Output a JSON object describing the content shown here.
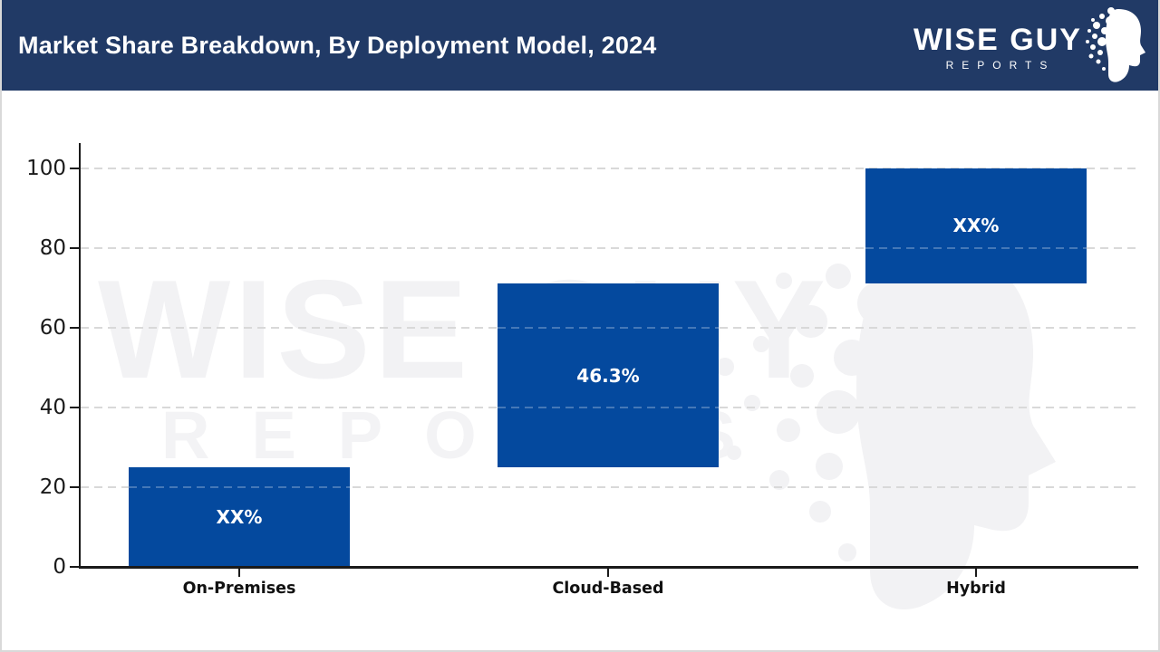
{
  "header": {
    "title": "Market Share Breakdown, By Deployment Model, 2024",
    "brand": {
      "line1": "WISE GUY",
      "line2": "REPORTS"
    }
  },
  "watermark": {
    "line1": "WISE GUY",
    "line2": "REPORTS"
  },
  "chart_data": {
    "type": "bar",
    "subtype": "floating_stacked_waterfall",
    "title": "Market Share Breakdown, By Deployment Model, 2024",
    "categories": [
      "On-Premises",
      "Cloud-Based",
      "Hybrid"
    ],
    "bars": [
      {
        "category": "On-Premises",
        "from": 0,
        "to": 24.9,
        "label": "XX%"
      },
      {
        "category": "Cloud-Based",
        "from": 24.9,
        "to": 71.2,
        "label": "46.3%"
      },
      {
        "category": "Hybrid",
        "from": 71.2,
        "to": 100,
        "label": "XX%"
      }
    ],
    "xlabel": "",
    "ylabel": "",
    "ylim": [
      0,
      100
    ],
    "yticks": [
      0,
      20,
      40,
      60,
      80,
      100
    ],
    "grid": {
      "axis": "y",
      "style": "dashed",
      "color": "#d9d9d9"
    },
    "legend": null,
    "colors": {
      "bar": "#04499e",
      "bar_label": "#ffffff",
      "header_bg": "#213a66",
      "axis": "#1a1a1a",
      "watermark": "#f2f2f4"
    }
  }
}
